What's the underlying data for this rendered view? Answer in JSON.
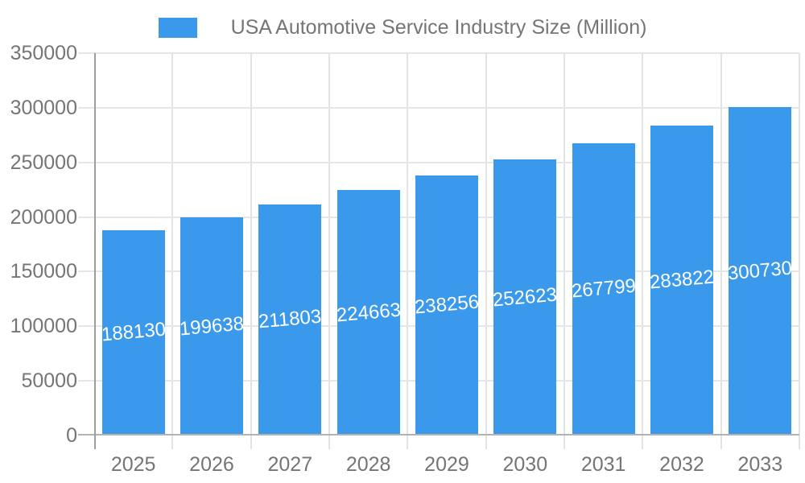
{
  "legend": {
    "label": "USA Automotive Service Industry Size (Million)"
  },
  "colors": {
    "bar": "#3B99EC",
    "axis_text": "#757575",
    "value_label_text": "#ffffff",
    "gridline": "#e6e6e6",
    "y_axis_line": "#9e9e9e",
    "x_axis_line": "#b3b3b3",
    "background": "#ffffff"
  },
  "chart_data": {
    "type": "bar",
    "title": "USA Automotive Service Industry Size (Million)",
    "xlabel": "",
    "ylabel": "",
    "categories": [
      "2025",
      "2026",
      "2027",
      "2028",
      "2029",
      "2030",
      "2031",
      "2032",
      "2033"
    ],
    "values": [
      188130,
      199638,
      211803,
      224663,
      238256,
      252623,
      267799,
      283822,
      300730
    ],
    "value_labels": [
      "188130",
      "199638",
      "211803",
      "224663",
      "238256",
      "252623",
      "267799",
      "283822",
      "300730"
    ],
    "ylim": [
      0,
      350000
    ],
    "yticks": [
      0,
      50000,
      100000,
      150000,
      200000,
      250000,
      300000,
      350000
    ],
    "ytick_labels": [
      "0",
      "50000",
      "100000",
      "150000",
      "200000",
      "250000",
      "300000",
      "350000"
    ],
    "grid": true,
    "legend_position": "top",
    "series_color": "#3B99EC"
  }
}
